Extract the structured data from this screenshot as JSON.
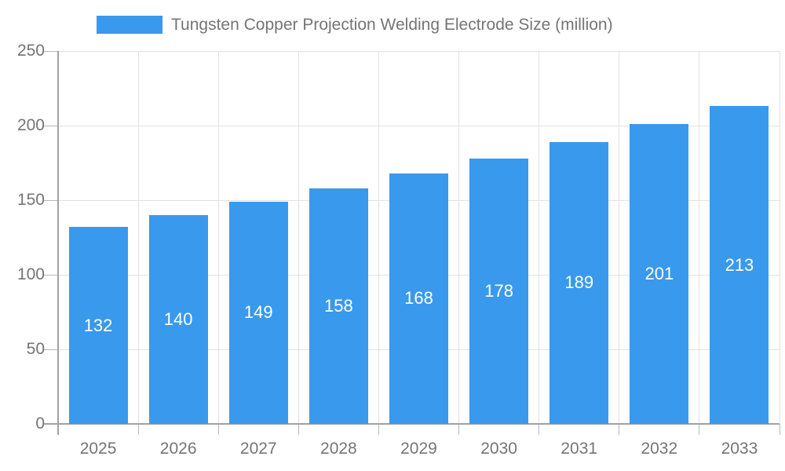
{
  "chart_data": {
    "type": "bar",
    "title": "",
    "legend": "Tungsten Copper Projection Welding Electrode Size (million)",
    "legend_position": "top",
    "categories": [
      "2025",
      "2026",
      "2027",
      "2028",
      "2029",
      "2030",
      "2031",
      "2032",
      "2033"
    ],
    "values": [
      132,
      140,
      149,
      158,
      168,
      178,
      189,
      201,
      213
    ],
    "xlabel": "",
    "ylabel": "",
    "ylim": [
      0,
      250
    ],
    "ytick_step": 50,
    "ytick_labels": [
      "0",
      "50",
      "100",
      "150",
      "200",
      "250"
    ],
    "grid": true,
    "value_labels_inside_bars": true,
    "colors": {
      "bar": "#3999EC",
      "grid": "#e2e2e2",
      "axis": "#a3a3a3",
      "tick": "#b8b8b8",
      "text": "#757575",
      "value_label": "#ffffff",
      "background": "#ffffff"
    }
  }
}
